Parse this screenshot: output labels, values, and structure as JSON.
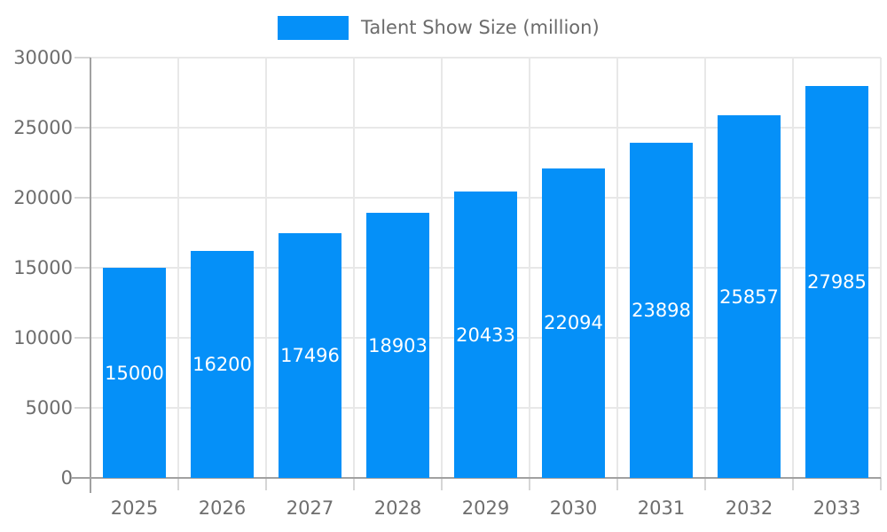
{
  "page": {
    "background_color": "#ffffff"
  },
  "legend": {
    "label": "Talent Show Size (million)",
    "swatch_color": "#0590f8",
    "position": "top-center"
  },
  "chart_data": {
    "type": "bar",
    "title": "",
    "categories": [
      "2025",
      "2026",
      "2027",
      "2028",
      "2029",
      "2030",
      "2031",
      "2032",
      "2033"
    ],
    "series": [
      {
        "name": "Talent Show Size (million)",
        "values": [
          15000,
          16200,
          17496,
          18903,
          20433,
          22094,
          23898,
          25857,
          27985
        ]
      }
    ],
    "value_labels": [
      15000,
      16200,
      17496,
      18903,
      20433,
      22094,
      23898,
      25857,
      27985
    ],
    "xlabel": "",
    "ylabel": "",
    "ylim": [
      0,
      30000
    ],
    "yticks": [
      0,
      5000,
      10000,
      15000,
      20000,
      25000,
      30000
    ],
    "grid": true,
    "legend_position": "top-center",
    "colors": {
      "bar": "#0590f8",
      "value_label_text": "#ffffff",
      "grid_line": "#e8e8e8",
      "tick_mark": "#d6d6d6",
      "axis_line": "#a1a1a1",
      "axis_text": "#6e6e6e",
      "legend_text": "#6b6b6b",
      "background": "#ffffff"
    }
  }
}
